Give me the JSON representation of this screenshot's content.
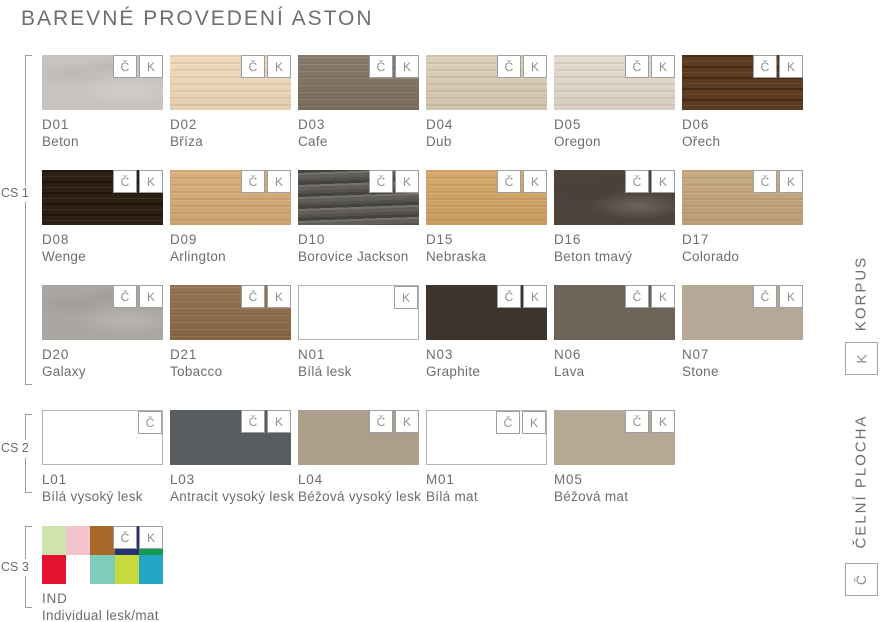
{
  "title": "BAREVNÉ PROVEDENÍ ASTON",
  "legend": {
    "korpus_label": "KORPUS",
    "korpus_badge": "K",
    "front_label": "ČELNÍ PLOCHA",
    "front_badge": "Č"
  },
  "groups": [
    {
      "label": "CS 1"
    },
    {
      "label": "CS 2"
    },
    {
      "label": "CS 3"
    }
  ],
  "ui_colors": {
    "text": "#6d6d6d",
    "border": "#9e9e9e",
    "badge_text": "#8f8f8f"
  },
  "rows": [
    {
      "cells": [
        {
          "code": "D01",
          "name": "Beton",
          "color": "#c7c4bf",
          "texture": "concrete",
          "badges": [
            "Č",
            "K"
          ]
        },
        {
          "code": "D02",
          "name": "Bříza",
          "color": "#efdab8",
          "texture": "wood",
          "badges": [
            "Č",
            "K"
          ]
        },
        {
          "code": "D03",
          "name": "Cafe",
          "color": "#7d7161",
          "texture": "wood",
          "badges": [
            "Č",
            "K"
          ]
        },
        {
          "code": "D04",
          "name": "Dub",
          "color": "#d9cdb4",
          "texture": "wood",
          "badges": [
            "Č",
            "K"
          ]
        },
        {
          "code": "D05",
          "name": "Oregon",
          "color": "#e3d9cb",
          "texture": "wood",
          "badges": [
            "Č",
            "K"
          ]
        },
        {
          "code": "D06",
          "name": "Ořech",
          "color": "#5d3b20",
          "texture": "wood-dark",
          "badges": [
            "Č",
            "K"
          ]
        }
      ]
    },
    {
      "cells": [
        {
          "code": "D08",
          "name": "Wenge",
          "color": "#2c1f14",
          "texture": "wood-dark",
          "badges": [
            "Č",
            "K"
          ]
        },
        {
          "code": "D09",
          "name": "Arlington",
          "color": "#d5aa75",
          "texture": "wood",
          "badges": [
            "Č",
            "K"
          ]
        },
        {
          "code": "D10",
          "name": "Borovice Jackson",
          "color": "#615e5a",
          "texture": "rustic",
          "badges": [
            "Č",
            "K"
          ]
        },
        {
          "code": "D15",
          "name": "Nebraska",
          "color": "#d3a363",
          "texture": "wood",
          "badges": [
            "Č",
            "K"
          ]
        },
        {
          "code": "D16",
          "name": "Beton tmavý",
          "color": "#4c433b",
          "texture": "concrete",
          "badges": [
            "Č",
            "K"
          ]
        },
        {
          "code": "D17",
          "name": "Colorado",
          "color": "#c3a57c",
          "texture": "wood",
          "badges": [
            "Č",
            "K"
          ]
        }
      ]
    },
    {
      "cells": [
        {
          "code": "D20",
          "name": "Galaxy",
          "color": "#aaa7a2",
          "texture": "concrete",
          "badges": [
            "Č",
            "K"
          ]
        },
        {
          "code": "D21",
          "name": "Tobacco",
          "color": "#8c6946",
          "texture": "wood",
          "badges": [
            "Č",
            "K"
          ]
        },
        {
          "code": "N01",
          "name": "Bílá lesk",
          "color": "#ffffff",
          "texture": "plain",
          "badges": [
            "K"
          ]
        },
        {
          "code": "N03",
          "name": "Graphite",
          "color": "#3c352f",
          "texture": "plain",
          "badges": [
            "Č",
            "K"
          ]
        },
        {
          "code": "N06",
          "name": "Lava",
          "color": "#6d6358",
          "texture": "plain",
          "badges": [
            "Č",
            "K"
          ]
        },
        {
          "code": "N07",
          "name": "Stone",
          "color": "#b5a896",
          "texture": "plain",
          "badges": [
            "Č",
            "K"
          ]
        }
      ]
    },
    {
      "cells": [
        {
          "code": "L01",
          "name": "Bílá vysoký lesk",
          "color": "#ffffff",
          "texture": "plain",
          "badges": [
            "Č"
          ]
        },
        {
          "code": "L03",
          "name": "Antracit vysoký lesk",
          "color": "#595d60",
          "texture": "plain",
          "badges": [
            "Č",
            "K"
          ]
        },
        {
          "code": "L04",
          "name": "Béžová vysoký lesk",
          "color": "#ad9e8c",
          "texture": "plain",
          "badges": [
            "Č",
            "K"
          ]
        },
        {
          "code": "M01",
          "name": "Bílá mat",
          "color": "#ffffff",
          "texture": "plain",
          "badges": [
            "Č",
            "K"
          ]
        },
        {
          "code": "M05",
          "name": "Béžová mat",
          "color": "#b5a895",
          "texture": "plain",
          "badges": [
            "Č",
            "K"
          ]
        }
      ]
    },
    {
      "cells": [
        {
          "code": "IND",
          "name": "Individual lesk/mat",
          "texture": "palette",
          "badges": [
            "Č",
            "K"
          ],
          "palette": [
            "#cfe3ac",
            "#f2c3cb",
            "#a5672a",
            "#283173",
            "#169a4e",
            "#e5132f",
            "#ffffff",
            "#7fccba",
            "#c6d93f",
            "#23a7c4"
          ]
        }
      ]
    }
  ]
}
